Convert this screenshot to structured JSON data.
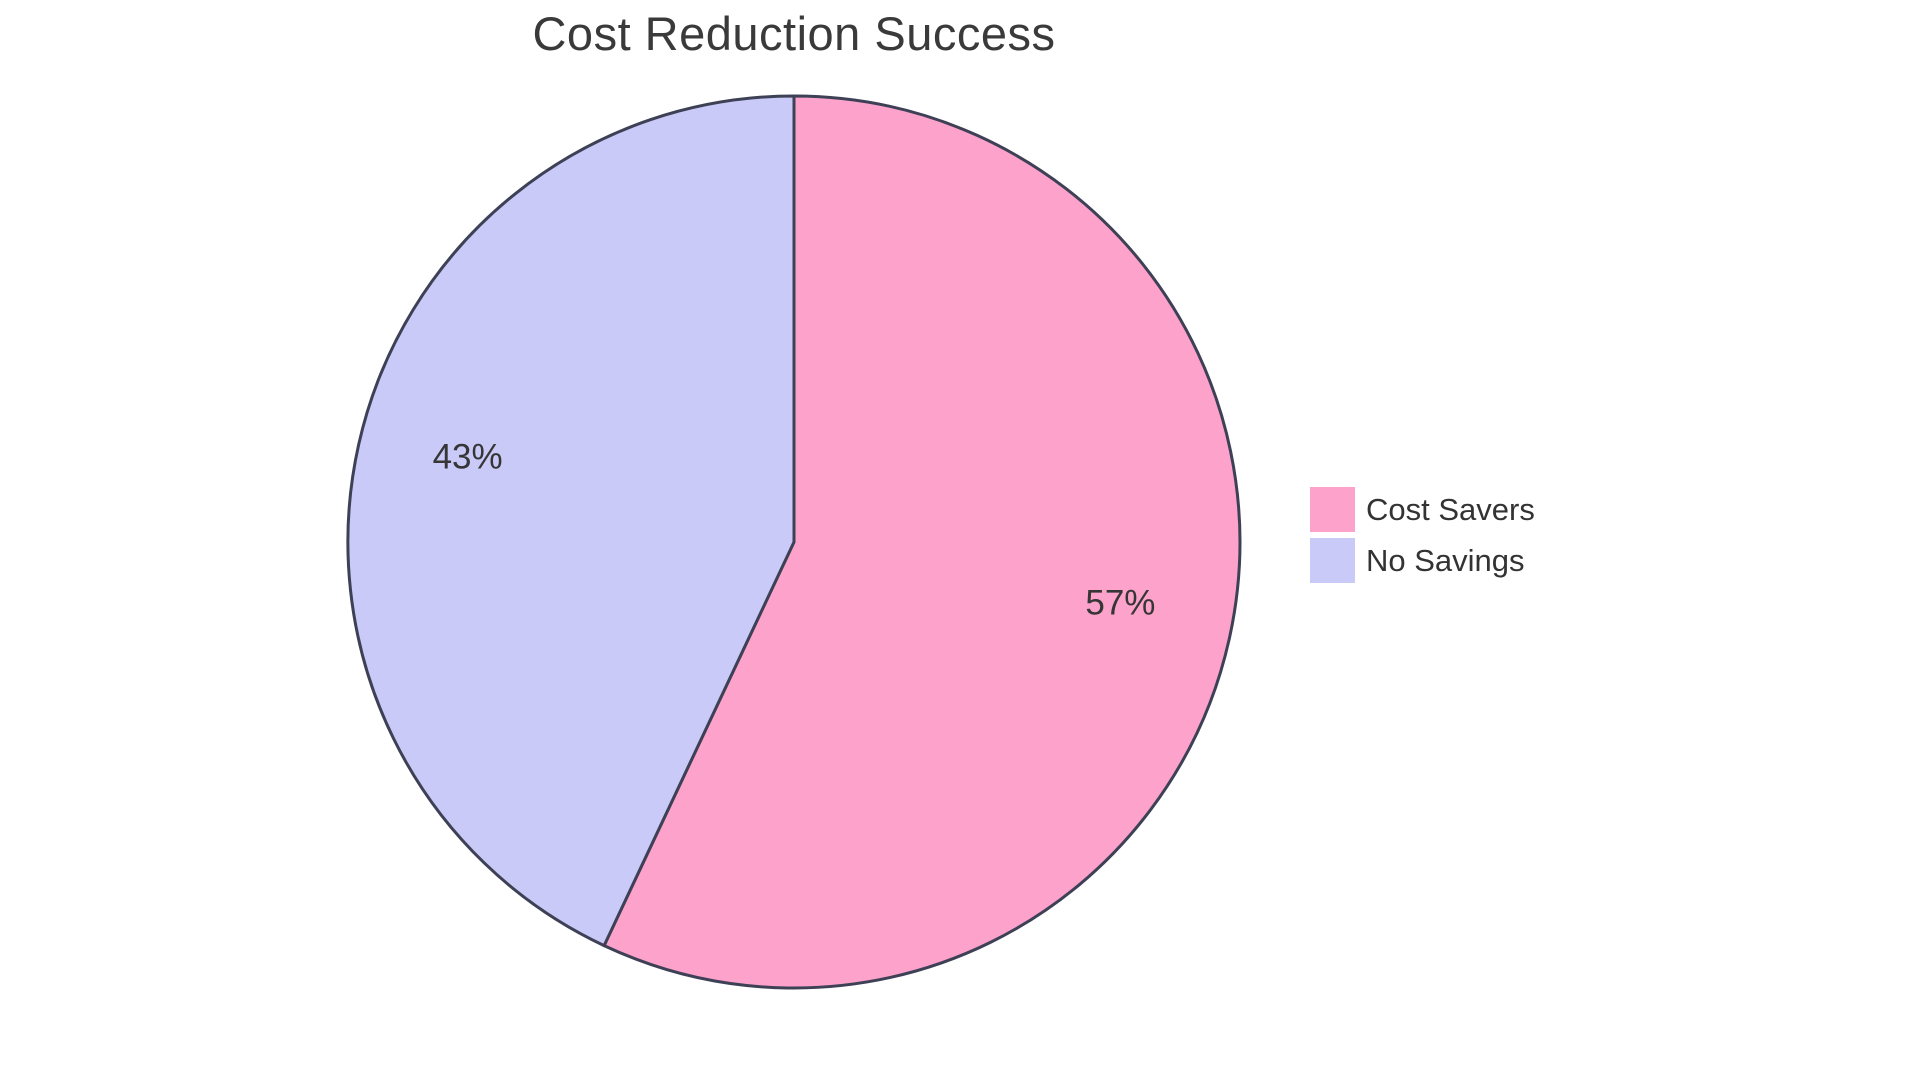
{
  "chart_data": {
    "type": "pie",
    "title": "Cost Reduction Success",
    "slices": [
      {
        "label": "Cost Savers",
        "value": 57,
        "percent_label": "57%",
        "color": "#FCA2CB"
      },
      {
        "label": "No Savings",
        "value": 43,
        "percent_label": "43%",
        "color": "#C9CAF8"
      }
    ],
    "start_angle_deg": 0,
    "direction": "clockwise",
    "stroke_color": "#3E4156",
    "stroke_width": 3,
    "label_color": "#363636",
    "legend_position": "right",
    "background_color": "#FFFFFF"
  }
}
